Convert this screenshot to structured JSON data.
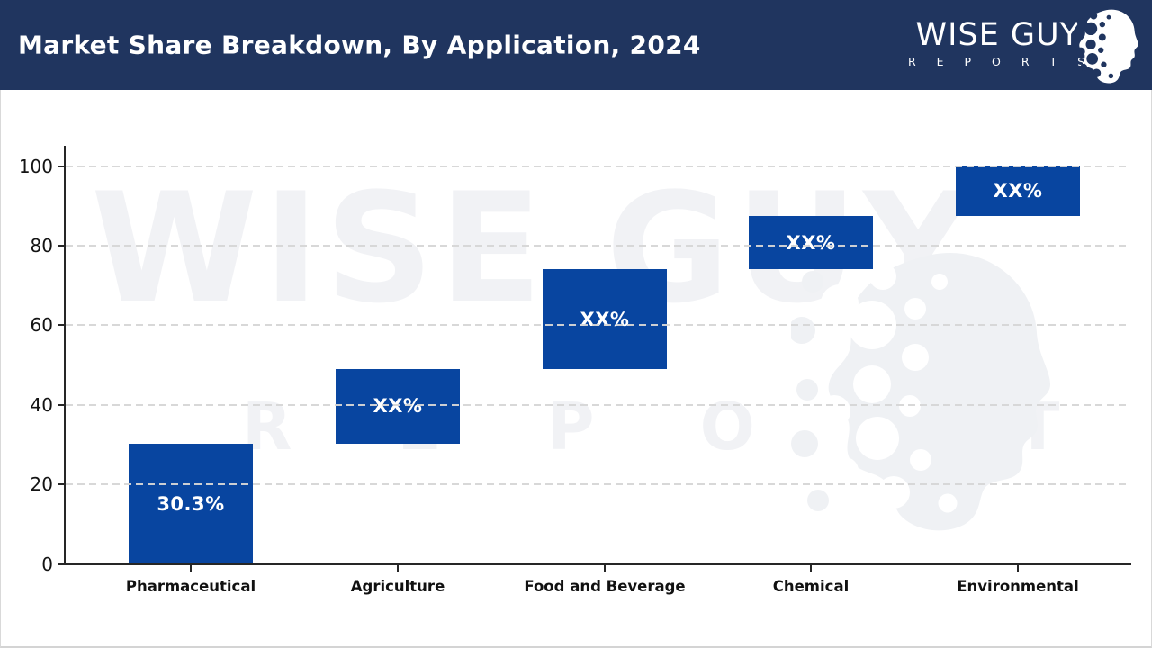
{
  "header": {
    "title": "Market Share Breakdown, By Application, 2024",
    "bg_color": "#20355F",
    "logo": {
      "line1": "WISE GUY",
      "line2": "R E P O R T S"
    }
  },
  "watermark": {
    "line1": "WISE GUY",
    "line2": "R E P O R T S"
  },
  "chart_data": {
    "type": "bar",
    "subtype": "waterfall",
    "title": "Market Share Breakdown, By Application, 2024",
    "xlabel": "",
    "ylabel": "",
    "ylim": [
      0,
      105
    ],
    "yticks": [
      0,
      20,
      40,
      60,
      80,
      100
    ],
    "grid": "horizontal-dashed",
    "legend": false,
    "bar_color": "#0845A0",
    "label_color": "#ffffff",
    "categories": [
      "Pharmaceutical",
      "Agriculture",
      "Food and Beverage",
      "Chemical",
      "Environmental"
    ],
    "segments": [
      {
        "category": "Pharmaceutical",
        "start": 0,
        "end": 30.3,
        "label": "30.3%"
      },
      {
        "category": "Agriculture",
        "start": 30.3,
        "end": 49.0,
        "label": "XX%"
      },
      {
        "category": "Food and Beverage",
        "start": 49.0,
        "end": 74.0,
        "label": "XX%"
      },
      {
        "category": "Chemical",
        "start": 74.0,
        "end": 87.4,
        "label": "XX%"
      },
      {
        "category": "Environmental",
        "start": 87.4,
        "end": 100.0,
        "label": "XX%"
      }
    ]
  }
}
